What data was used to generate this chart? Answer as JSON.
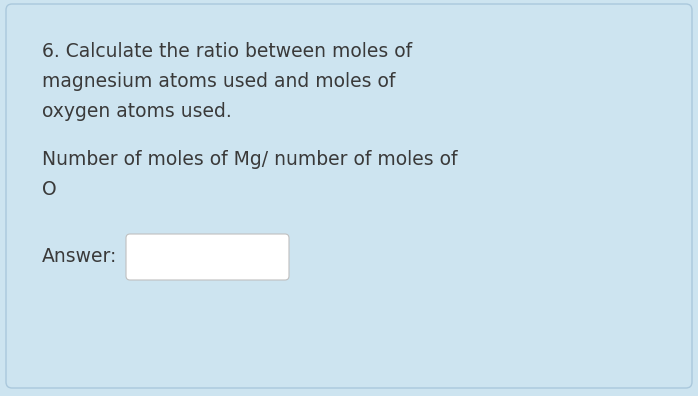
{
  "background_color": "#cde4f0",
  "text_color": "#3a3a3a",
  "title_line1": "6. Calculate the ratio between moles of",
  "title_line2": "magnesium atoms used and moles of",
  "title_line3": "oxygen atoms used.",
  "subtitle_line1": "Number of moles of Mg/ number of moles of",
  "subtitle_line2": "O",
  "answer_label": "Answer:",
  "answer_box_color": "#ffffff",
  "answer_box_border": "#c0c0c0",
  "font_size": 13.5,
  "fig_width": 6.98,
  "fig_height": 3.96,
  "dpi": 100
}
